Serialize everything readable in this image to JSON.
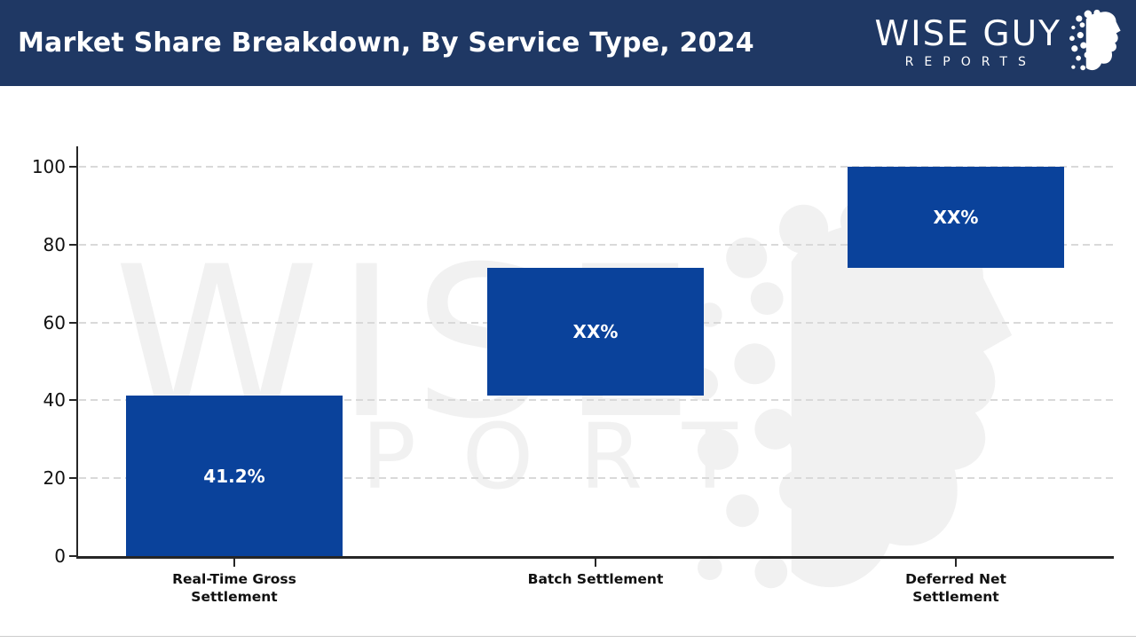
{
  "header": {
    "bg": "#1f3864",
    "title": "Market Share Breakdown, By Service Type, 2024",
    "logo": {
      "wordmark": "WISE GUY",
      "sub": "REPORTS"
    }
  },
  "watermark": {
    "wordmark": "WISE",
    "sub": "REPORTS"
  },
  "chart_data": {
    "type": "bar",
    "variant": "stacked-waterfall",
    "title": "Market Share Breakdown, By Service Type, 2024",
    "categories": [
      "Real-Time Gross Settlement",
      "Batch Settlement",
      "Deferred Net Settlement"
    ],
    "category_label_lines": [
      [
        "Real-Time Gross",
        "Settlement"
      ],
      [
        "Batch Settlement"
      ],
      [
        "Deferred Net",
        "Settlement"
      ]
    ],
    "segments": [
      {
        "category": "Real-Time Gross Settlement",
        "start": 0,
        "end": 41.2,
        "value_label": "41.2%"
      },
      {
        "category": "Batch Settlement",
        "start": 41.2,
        "end": 74,
        "value_label": "XX%"
      },
      {
        "category": "Deferred Net Settlement",
        "start": 74,
        "end": 100,
        "value_label": "XX%"
      }
    ],
    "xlabel": "",
    "ylabel": "",
    "yticks": [
      0,
      20,
      40,
      60,
      80,
      100
    ],
    "ylim": [
      0,
      105
    ],
    "grid": "horizontal-dashed",
    "legend": "none",
    "colors": {
      "bar": "#0a429b",
      "bar_label": "#ffffff",
      "axis": "#262626",
      "gridline": "#d9d9d9",
      "tick_label": "#111111",
      "header_bg": "#1f3864",
      "watermark": "#f1f1f1",
      "footer_hairline": "#cccccc"
    }
  }
}
